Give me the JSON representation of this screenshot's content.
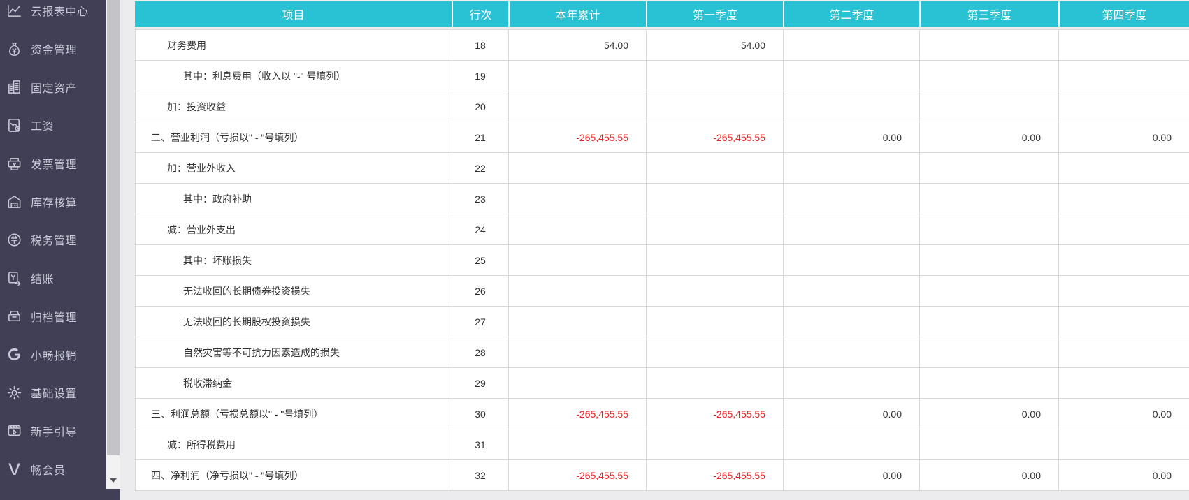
{
  "colors": {
    "header_bg": "#29c1d4",
    "header_fg": "#ffffff",
    "sidebar_bg": "#413f56",
    "sidebar_fg": "#c9ccd8",
    "border": "#d9d9d9",
    "text": "#333333",
    "negative": "#f22222"
  },
  "sidebar": {
    "items": [
      {
        "label": "云报表中心",
        "icon": "line-chart"
      },
      {
        "label": "资金管理",
        "icon": "money-bag"
      },
      {
        "label": "固定资产",
        "icon": "building"
      },
      {
        "label": "工资",
        "icon": "payroll-sheet"
      },
      {
        "label": "发票管理",
        "icon": "invoice"
      },
      {
        "label": "库存核算",
        "icon": "warehouse"
      },
      {
        "label": "税务管理",
        "icon": "tax-coin"
      },
      {
        "label": "结账",
        "icon": "closing-doc"
      },
      {
        "label": "归档管理",
        "icon": "archive-box"
      },
      {
        "label": "小畅报销",
        "icon": "xiaochang-logo"
      },
      {
        "label": "基础设置",
        "icon": "gear"
      },
      {
        "label": "新手引导",
        "icon": "video-guide"
      },
      {
        "label": "畅会员",
        "icon": "v-member"
      }
    ]
  },
  "table": {
    "columns": [
      {
        "label": "项目"
      },
      {
        "label": "行次"
      },
      {
        "label": "本年累计"
      },
      {
        "label": "第一季度"
      },
      {
        "label": "第二季度"
      },
      {
        "label": "第三季度"
      },
      {
        "label": "第四季度"
      }
    ],
    "rows": [
      {
        "item": "财务费用",
        "indent": 1,
        "line": "18",
        "values": [
          "54.00",
          "54.00",
          "",
          "",
          ""
        ]
      },
      {
        "item": "其中：利息费用（收入以 \"-\" 号填列）",
        "indent": 2,
        "line": "19",
        "values": [
          "",
          "",
          "",
          "",
          ""
        ]
      },
      {
        "item": "加：投资收益",
        "indent": 1,
        "line": "20",
        "values": [
          "",
          "",
          "",
          "",
          ""
        ]
      },
      {
        "item": "二、营业利润（亏损以\" - \"号填列）",
        "indent": 0,
        "line": "21",
        "values": [
          "-265,455.55",
          "-265,455.55",
          "0.00",
          "0.00",
          "0.00"
        ]
      },
      {
        "item": "加：营业外收入",
        "indent": 1,
        "line": "22",
        "values": [
          "",
          "",
          "",
          "",
          ""
        ]
      },
      {
        "item": "其中：政府补助",
        "indent": 2,
        "line": "23",
        "values": [
          "",
          "",
          "",
          "",
          ""
        ]
      },
      {
        "item": "减：营业外支出",
        "indent": 1,
        "line": "24",
        "values": [
          "",
          "",
          "",
          "",
          ""
        ]
      },
      {
        "item": "其中：坏账损失",
        "indent": 2,
        "line": "25",
        "values": [
          "",
          "",
          "",
          "",
          ""
        ]
      },
      {
        "item": "无法收回的长期债券投资损失",
        "indent": 2,
        "line": "26",
        "values": [
          "",
          "",
          "",
          "",
          ""
        ]
      },
      {
        "item": "无法收回的长期股权投资损失",
        "indent": 2,
        "line": "27",
        "values": [
          "",
          "",
          "",
          "",
          ""
        ]
      },
      {
        "item": "自然灾害等不可抗力因素造成的损失",
        "indent": 2,
        "line": "28",
        "values": [
          "",
          "",
          "",
          "",
          ""
        ]
      },
      {
        "item": "税收滞纳金",
        "indent": 2,
        "line": "29",
        "values": [
          "",
          "",
          "",
          "",
          ""
        ]
      },
      {
        "item": "三、利润总额（亏损总额以\" - \"号填列）",
        "indent": 0,
        "line": "30",
        "values": [
          "-265,455.55",
          "-265,455.55",
          "0.00",
          "0.00",
          "0.00"
        ]
      },
      {
        "item": "减：所得税费用",
        "indent": 1,
        "line": "31",
        "values": [
          "",
          "",
          "",
          "",
          ""
        ]
      },
      {
        "item": "四、净利润（净亏损以\" - \"号填列）",
        "indent": 0,
        "line": "32",
        "values": [
          "-265,455.55",
          "-265,455.55",
          "0.00",
          "0.00",
          "0.00"
        ]
      }
    ]
  }
}
